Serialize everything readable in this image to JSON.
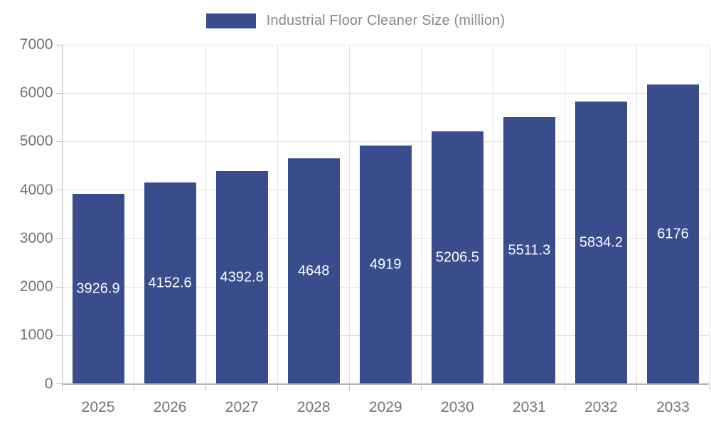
{
  "legend": {
    "label": "Industrial Floor Cleaner Size (million)"
  },
  "chart_data": {
    "type": "bar",
    "title": "Industrial Floor Cleaner Size (million)",
    "categories": [
      "2025",
      "2026",
      "2027",
      "2028",
      "2029",
      "2030",
      "2031",
      "2032",
      "2033"
    ],
    "values": [
      3926.9,
      4152.6,
      4392.8,
      4648,
      4919,
      5206.5,
      5511.3,
      5834.2,
      6176
    ],
    "value_labels": [
      "3926.9",
      "4152.6",
      "4392.8",
      "4648",
      "4919",
      "5206.5",
      "5511.3",
      "5834.2",
      "6176"
    ],
    "xlabel": "",
    "ylabel": "",
    "ylim": [
      0,
      7000
    ],
    "yticks": [
      0,
      1000,
      2000,
      3000,
      4000,
      5000,
      6000,
      7000
    ],
    "grid": true,
    "legend_position": "top-center",
    "colors": {
      "bar": "#394D8C",
      "value_label": "#ffffff",
      "axis_text": "#737373",
      "legend_text": "#888888",
      "gridline": "#e2e2e2",
      "axis_line": "#b3b3bc",
      "background": "#ffffff"
    }
  }
}
